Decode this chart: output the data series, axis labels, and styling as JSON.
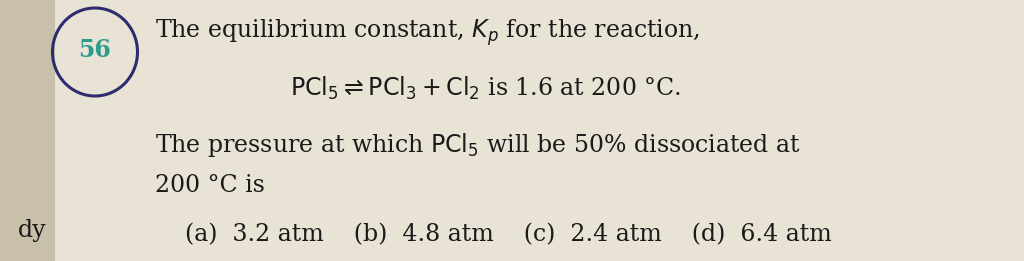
{
  "background_color": "#c8c0aa",
  "paper_color": "#e8e3d5",
  "question_number": "56",
  "line1": "The equilibrium constant, $K_p$ for the reaction,",
  "line2": "$\\mathrm{PCl_5} \\rightleftharpoons \\mathrm{PCl_3} + \\mathrm{Cl_2}$ is 1.6 at 200 °C.",
  "line3": "The pressure at which $\\mathrm{PCl_5}$ will be 50% dissociated at",
  "line4": "200 °C is",
  "line5": "(a)  3.2 atm    (b)  4.8 atm    (c)  2.4 atm    (d)  6.4 atm",
  "left_margin_text": "dy",
  "text_color": "#1a1a1a",
  "qnum_color": "#2a9d8f",
  "circle_color": "#2c2c6e",
  "font_size_main": 17,
  "font_size_qnum": 17,
  "font_size_options": 17
}
